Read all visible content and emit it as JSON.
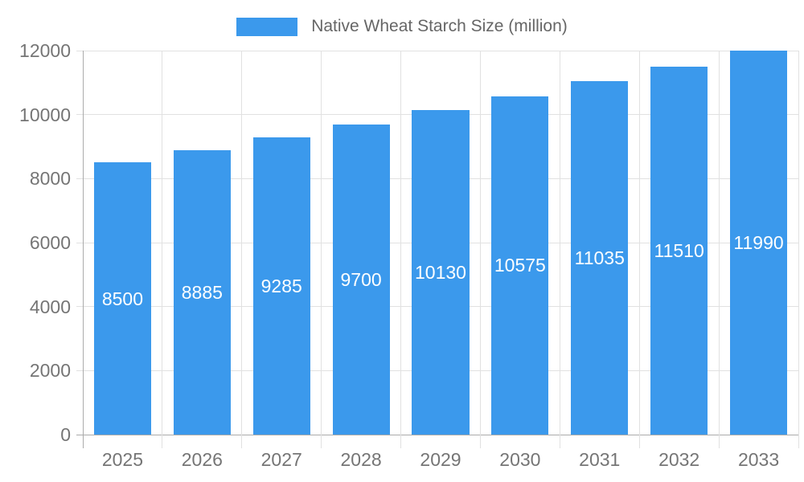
{
  "chart_data": {
    "type": "bar",
    "title": "Native Wheat Starch Size (million)",
    "legend": {
      "label": "Native Wheat Starch Size (million)",
      "position": "top-center"
    },
    "categories": [
      "2025",
      "2026",
      "2027",
      "2028",
      "2029",
      "2030",
      "2031",
      "2032",
      "2033"
    ],
    "values": [
      8500,
      8885,
      9285,
      9700,
      10130,
      10575,
      11035,
      11510,
      11990
    ],
    "bar_value_labels": [
      "8500",
      "8885",
      "9285",
      "9700",
      "10130",
      "10575",
      "11035",
      "11510",
      "11990"
    ],
    "xlabel": "",
    "ylabel": "",
    "ylim": [
      0,
      12000
    ],
    "yticks": [
      0,
      2000,
      4000,
      6000,
      8000,
      10000,
      12000
    ],
    "grid": true,
    "bar_labels_inside": true,
    "colors": {
      "bar": "#3B99EC",
      "grid": "#E1E1E1",
      "axis": "#ABABAB",
      "tick_label": "#757575",
      "legend_text": "#666666",
      "bar_label": "#FFFFFF",
      "background": "#FFFFFF"
    }
  }
}
